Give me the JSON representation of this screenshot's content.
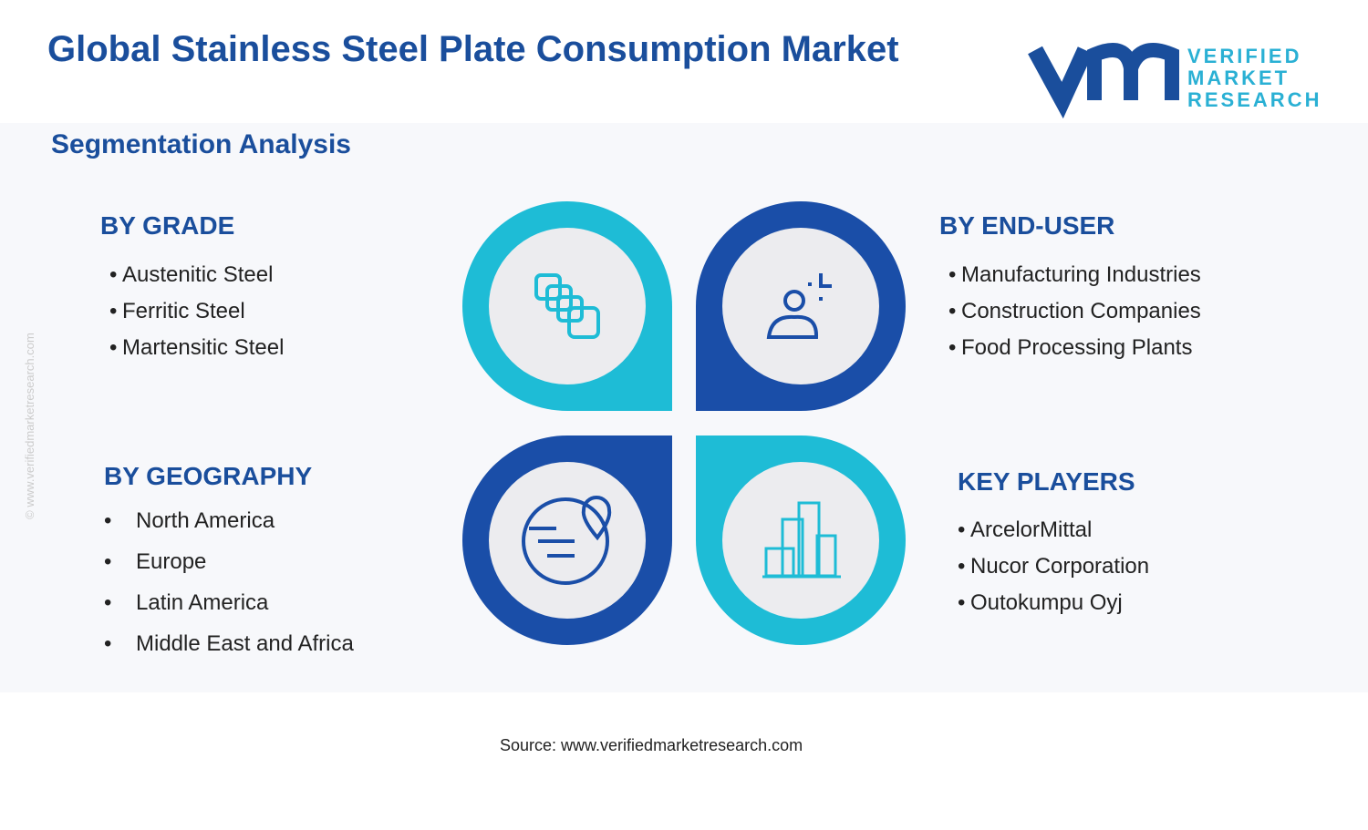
{
  "header": {
    "title": "Global Stainless Steel Plate Consumption Market",
    "subtitle": "Segmentation Analysis",
    "logo": [
      "VERIFIED",
      "MARKET",
      "RESEARCH"
    ]
  },
  "segments": [
    {
      "title": "BY GRADE",
      "items": [
        "Austenitic Steel",
        "Ferritic Steel",
        "Martensitic Steel"
      ]
    },
    {
      "title": "BY END-USER",
      "items": [
        "Manufacturing Industries",
        "Construction Companies",
        "Food Processing Plants"
      ]
    },
    {
      "title": "BY GEOGRAPHY",
      "items": [
        "North America",
        "Europe",
        "Latin America",
        "Middle East and Africa"
      ]
    },
    {
      "title": "KEY PLAYERS",
      "items": [
        "ArcelorMittal",
        "Nucor Corporation",
        "Outokumpu Oyj"
      ]
    }
  ],
  "watermark": "© www.verifiedmarketresearch.com",
  "source": "Source: www.verifiedmarketresearch.com"
}
